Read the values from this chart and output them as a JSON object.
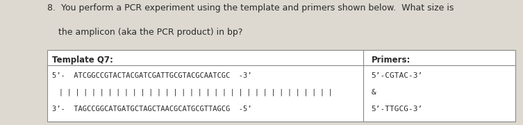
{
  "question_text_line1": "8.  You perform a PCR experiment using the template and primers shown below.  What size is",
  "question_text_line2": "    the amplicon (aka the PCR product) in bp?",
  "template_header": "Template Q7:",
  "primers_header": "Primers:",
  "seq_top": "5’-  ATCGGCCGTACTACGATCGATTGCGTACGCAATCGC  -3’",
  "seq_pipes": "| | | | | | | | | | | | | | | | | | | | | | | | | | | | | | | | | |",
  "seq_bottom": "3’-  TAGCCGGCATGATGCTAGCTAACGCATGCGTTAGCG  -5’",
  "primer1": "5’-CGTAC-3’",
  "amp": "&",
  "primer2": "5’-TTGCG-3’",
  "bg_color": "#ddd9d0",
  "border_color": "#888888",
  "text_color": "#2a2a2a",
  "q_fontsize": 9.0,
  "header_fontsize": 8.5,
  "seq_fontsize": 7.5,
  "primer_fontsize": 8.0
}
